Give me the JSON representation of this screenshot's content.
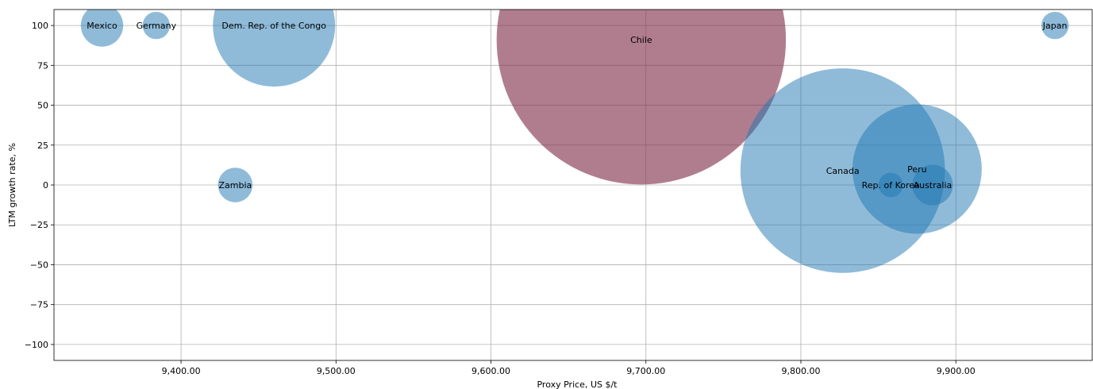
{
  "chart_data": {
    "type": "scatter",
    "title": "",
    "xlabel": "Proxy Price, US $/t",
    "ylabel": "LTM growth rate, %",
    "xlim": [
      9318,
      9988
    ],
    "ylim": [
      -110,
      110
    ],
    "x_ticks": [
      {
        "value": 9400,
        "label": "9,400.00"
      },
      {
        "value": 9500,
        "label": "9,500.00"
      },
      {
        "value": 9600,
        "label": "9,600.00"
      },
      {
        "value": 9700,
        "label": "9,700.00"
      },
      {
        "value": 9800,
        "label": "9,800.00"
      },
      {
        "value": 9900,
        "label": "9,900.00"
      }
    ],
    "y_ticks": [
      {
        "value": 100,
        "label": "100"
      },
      {
        "value": 75,
        "label": "75"
      },
      {
        "value": 50,
        "label": "50"
      },
      {
        "value": 25,
        "label": "25"
      },
      {
        "value": 0,
        "label": "0"
      },
      {
        "value": -25,
        "label": "−25"
      },
      {
        "value": -50,
        "label": "−50"
      },
      {
        "value": -75,
        "label": "−75"
      },
      {
        "value": -100,
        "label": "−100"
      }
    ],
    "grid": true,
    "colors": {
      "default": "#1f77b4",
      "highlight": "#7f2d4a"
    },
    "points": [
      {
        "label": "Mexico",
        "x": 9349,
        "y": 100,
        "size": 12,
        "highlight": false
      },
      {
        "label": "Germany",
        "x": 9384,
        "y": 100,
        "size": 5,
        "highlight": false
      },
      {
        "label": "Dem. Rep. of the Congo",
        "x": 9460,
        "y": 100,
        "size": 100,
        "highlight": false
      },
      {
        "label": "Zambia",
        "x": 9435,
        "y": 0,
        "size": 8,
        "highlight": false
      },
      {
        "label": "Chile",
        "x": 9697,
        "y": 91,
        "size": 560,
        "highlight": true
      },
      {
        "label": "Canada",
        "x": 9827,
        "y": 9,
        "size": 280,
        "highlight": false
      },
      {
        "label": "Peru",
        "x": 9875,
        "y": 10,
        "size": 112,
        "highlight": false
      },
      {
        "label": "Australia",
        "x": 9885,
        "y": 0,
        "size": 11,
        "highlight": false
      },
      {
        "label": "Rep. of Korea",
        "x": 9858,
        "y": 0,
        "size": 4,
        "highlight": false
      },
      {
        "label": "Japan",
        "x": 9964,
        "y": 100,
        "size": 5,
        "highlight": false
      }
    ]
  }
}
